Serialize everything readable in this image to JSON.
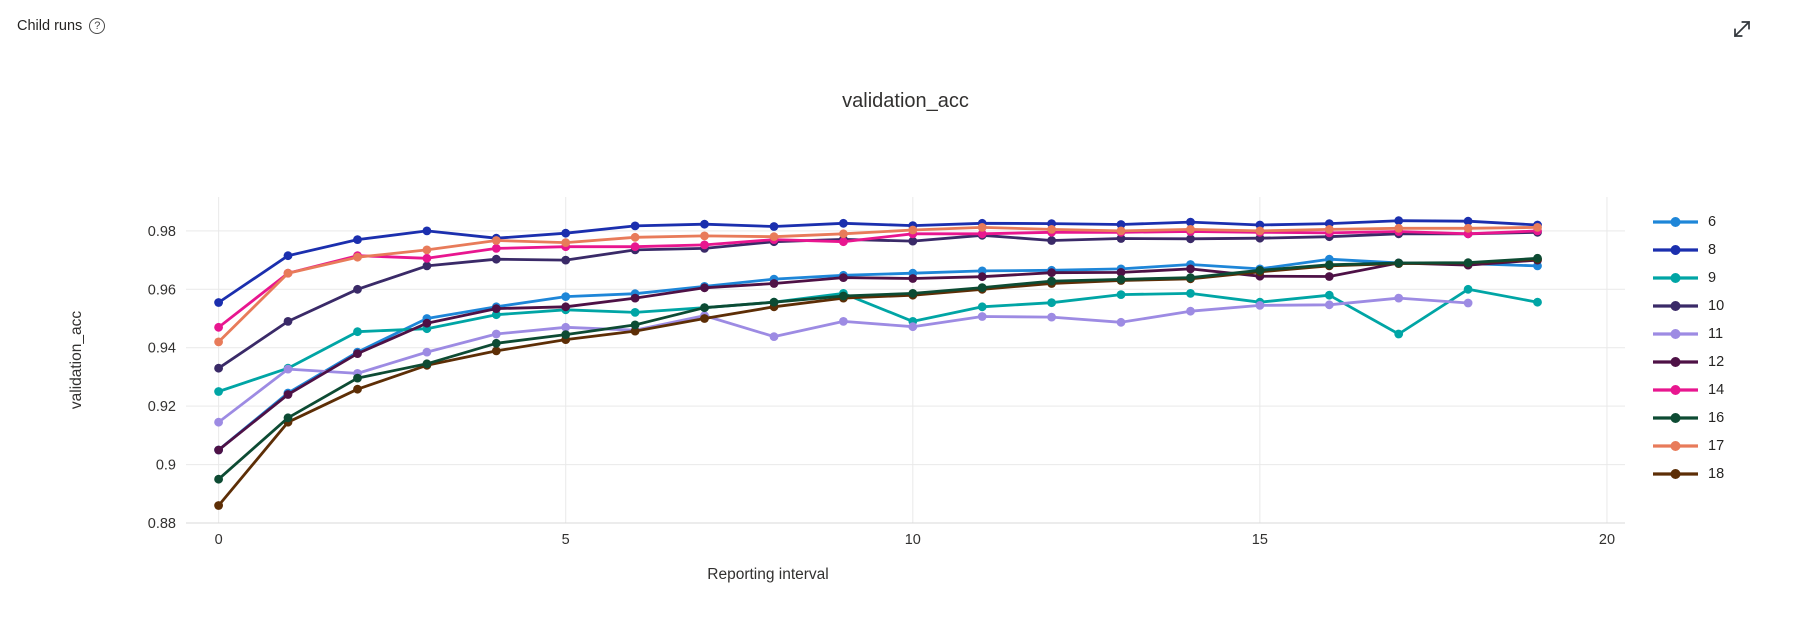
{
  "header": {
    "title": "Child runs",
    "help_icon": "?",
    "expand_icon": "expand-diagonal-arrow"
  },
  "chart_data": {
    "type": "line",
    "title": "validation_acc",
    "xlabel": "Reporting interval",
    "ylabel": "validation_acc",
    "x_tick_labels": [
      "0",
      "5",
      "10",
      "15",
      "20"
    ],
    "x_ticks": [
      0,
      5,
      10,
      15,
      20
    ],
    "y_tick_labels": [
      "0.88",
      "0.9",
      "0.92",
      "0.94",
      "0.96",
      "0.98"
    ],
    "y_ticks": [
      0.88,
      0.9,
      0.92,
      0.94,
      0.96,
      0.98
    ],
    "xlim": [
      -0.47,
      20.26
    ],
    "ylim": [
      0.88,
      0.9916
    ],
    "grid": true,
    "legend_position": "right",
    "grid_color": "#e9e9e9",
    "axis_line_color": "#d9d9d9",
    "x": [
      0,
      1,
      2,
      3,
      4,
      5,
      6,
      7,
      8,
      9,
      10,
      11,
      12,
      13,
      14,
      15,
      16,
      17,
      18,
      19
    ],
    "draw_order": [
      "6",
      "8",
      "9",
      "10",
      "11",
      "12",
      "14",
      "18",
      "16",
      "17"
    ],
    "series": [
      {
        "name": "6",
        "color": "#1e86d8",
        "values": [
          0.905,
          0.9245,
          0.9385,
          0.95,
          0.954,
          0.9575,
          0.9585,
          0.961,
          0.9635,
          0.9648,
          0.9655,
          0.9663,
          0.9665,
          0.967,
          0.9685,
          0.967,
          0.9703,
          0.969,
          0.9688,
          0.968
        ]
      },
      {
        "name": "8",
        "color": "#1b2fae",
        "values": [
          0.9555,
          0.9715,
          0.977,
          0.98,
          0.9775,
          0.9792,
          0.9817,
          0.9823,
          0.9815,
          0.9826,
          0.9818,
          0.9826,
          0.9825,
          0.9822,
          0.983,
          0.982,
          0.9825,
          0.9835,
          0.9833,
          0.982
        ]
      },
      {
        "name": "9",
        "color": "#00a5a5",
        "values": [
          0.925,
          0.933,
          0.9455,
          0.9465,
          0.9513,
          0.953,
          0.9521,
          0.9537,
          0.9556,
          0.9586,
          0.949,
          0.954,
          0.9554,
          0.9582,
          0.9586,
          0.9556,
          0.958,
          0.9447,
          0.96,
          0.9556
        ]
      },
      {
        "name": "10",
        "color": "#3a2a68",
        "values": [
          0.933,
          0.949,
          0.96,
          0.968,
          0.9703,
          0.97,
          0.9735,
          0.974,
          0.9763,
          0.9771,
          0.9765,
          0.9785,
          0.9767,
          0.9774,
          0.9773,
          0.9775,
          0.978,
          0.979,
          0.979,
          0.9795
        ]
      },
      {
        "name": "11",
        "color": "#9d8be3",
        "values": [
          0.9145,
          0.9327,
          0.9312,
          0.9385,
          0.9447,
          0.947,
          0.946,
          0.951,
          0.9438,
          0.949,
          0.9472,
          0.9507,
          0.9505,
          0.9487,
          0.9525,
          0.9545,
          0.9547,
          0.957,
          0.9553
        ]
      },
      {
        "name": "12",
        "color": "#4e1146",
        "values": [
          0.905,
          0.924,
          0.938,
          0.9484,
          0.9534,
          0.954,
          0.957,
          0.9605,
          0.962,
          0.964,
          0.9637,
          0.9643,
          0.9657,
          0.9658,
          0.967,
          0.9645,
          0.9644,
          0.969,
          0.9683,
          0.97
        ]
      },
      {
        "name": "14",
        "color": "#e8168f",
        "values": [
          0.947,
          0.9655,
          0.9715,
          0.9706,
          0.974,
          0.9746,
          0.9746,
          0.9752,
          0.977,
          0.9763,
          0.979,
          0.979,
          0.9795,
          0.9795,
          0.9798,
          0.9795,
          0.9793,
          0.9798,
          0.979,
          0.98
        ]
      },
      {
        "name": "16",
        "color": "#0d4b33",
        "values": [
          0.895,
          0.916,
          0.9296,
          0.9345,
          0.9415,
          0.9445,
          0.9478,
          0.9537,
          0.9556,
          0.9577,
          0.9586,
          0.9606,
          0.9628,
          0.9634,
          0.964,
          0.9665,
          0.9684,
          0.969,
          0.9691,
          0.9706
        ]
      },
      {
        "name": "17",
        "color": "#e87b5a",
        "values": [
          0.942,
          0.9655,
          0.971,
          0.9735,
          0.9767,
          0.976,
          0.9778,
          0.9783,
          0.978,
          0.979,
          0.9803,
          0.9812,
          0.9805,
          0.98,
          0.9805,
          0.98,
          0.9805,
          0.9809,
          0.9809,
          0.9812
        ]
      },
      {
        "name": "18",
        "color": "#5d2e06",
        "values": [
          0.886,
          0.9145,
          0.9258,
          0.934,
          0.9389,
          0.9428,
          0.9457,
          0.95,
          0.954,
          0.957,
          0.958,
          0.96,
          0.962,
          0.963,
          0.9636,
          0.966,
          0.968,
          0.9688,
          0.969,
          0.9703
        ]
      }
    ]
  }
}
